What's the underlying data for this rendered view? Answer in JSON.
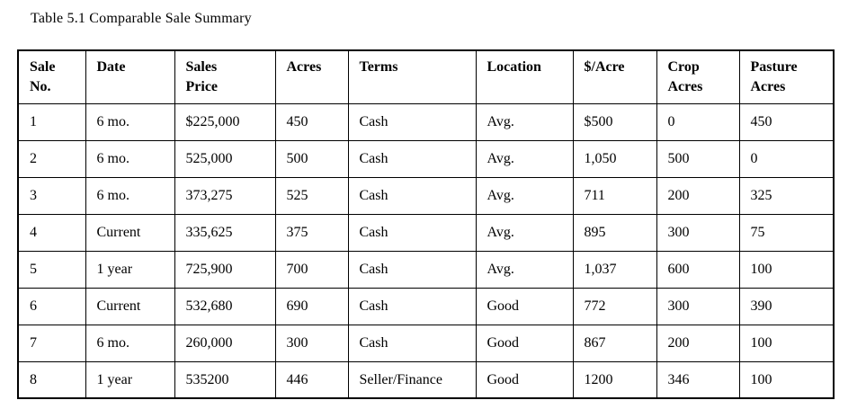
{
  "title": "Table 5.1 Comparable Sale Summary",
  "table": {
    "columns": [
      "Sale\nNo.",
      "Date",
      "Sales\nPrice",
      "Acres",
      "Terms",
      "Location",
      "$/Acre",
      "Crop\nAcres",
      "Pasture\nAcres"
    ],
    "rows": [
      [
        "1",
        "6 mo.",
        "$225,000",
        "450",
        "Cash",
        "Avg.",
        "$500",
        "0",
        "450"
      ],
      [
        "2",
        "6 mo.",
        "525,000",
        "500",
        "Cash",
        "Avg.",
        "1,050",
        "500",
        "0"
      ],
      [
        "3",
        "6 mo.",
        "373,275",
        "525",
        "Cash",
        "Avg.",
        "711",
        "200",
        "325"
      ],
      [
        "4",
        "Current",
        "335,625",
        "375",
        "Cash",
        "Avg.",
        "895",
        "300",
        "75"
      ],
      [
        "5",
        "1 year",
        "725,900",
        "700",
        "Cash",
        "Avg.",
        "1,037",
        "600",
        "100"
      ],
      [
        "6",
        "Current",
        "532,680",
        "690",
        "Cash",
        "Good",
        "772",
        "300",
        "390"
      ],
      [
        "7",
        "6 mo.",
        "260,000",
        "300",
        "Cash",
        "Good",
        "867",
        "200",
        "100"
      ],
      [
        "8",
        "1 year",
        "535200",
        "446",
        "Seller/Finance",
        "Good",
        "1200",
        "346",
        "100"
      ]
    ],
    "text_color": "#000000",
    "border_color": "#000000",
    "background_color": "#ffffff"
  }
}
